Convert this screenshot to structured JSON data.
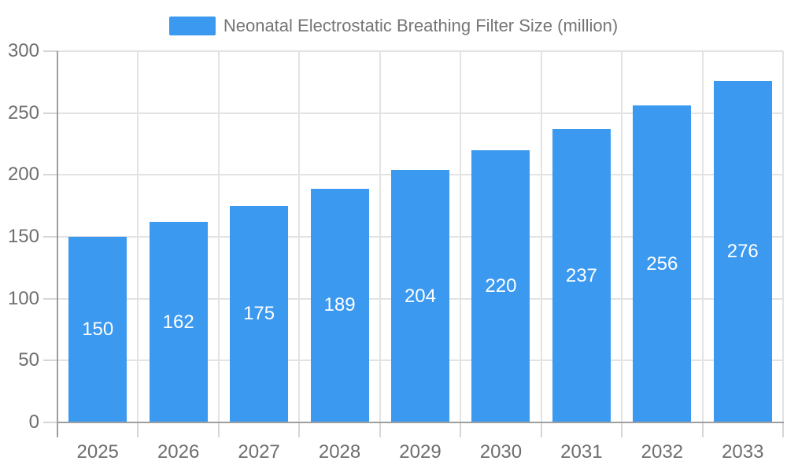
{
  "chart_data": {
    "type": "bar",
    "title": "",
    "legend": "Neonatal Electrostatic Breathing Filter Size (million)",
    "legend_position": "top-center",
    "categories": [
      "2025",
      "2026",
      "2027",
      "2028",
      "2029",
      "2030",
      "2031",
      "2032",
      "2033"
    ],
    "values": [
      150,
      162,
      175,
      189,
      204,
      220,
      237,
      256,
      276
    ],
    "xlabel": "",
    "ylabel": "",
    "ylim": [
      0,
      300
    ],
    "yticks": [
      0,
      50,
      100,
      150,
      200,
      250,
      300
    ],
    "grid": "horizontal-and-vertical",
    "value_labels": "inside-center-white",
    "colors": {
      "bar": "#3B99F0",
      "grid": "#E3E3E3",
      "tick": "#D6D6D6",
      "axis": "#9E9E9E",
      "axis_label_text": "#6E6E6E",
      "legend_text": "#757575",
      "value_label_text": "#FFFFFF",
      "background": "#FFFFFF"
    }
  }
}
